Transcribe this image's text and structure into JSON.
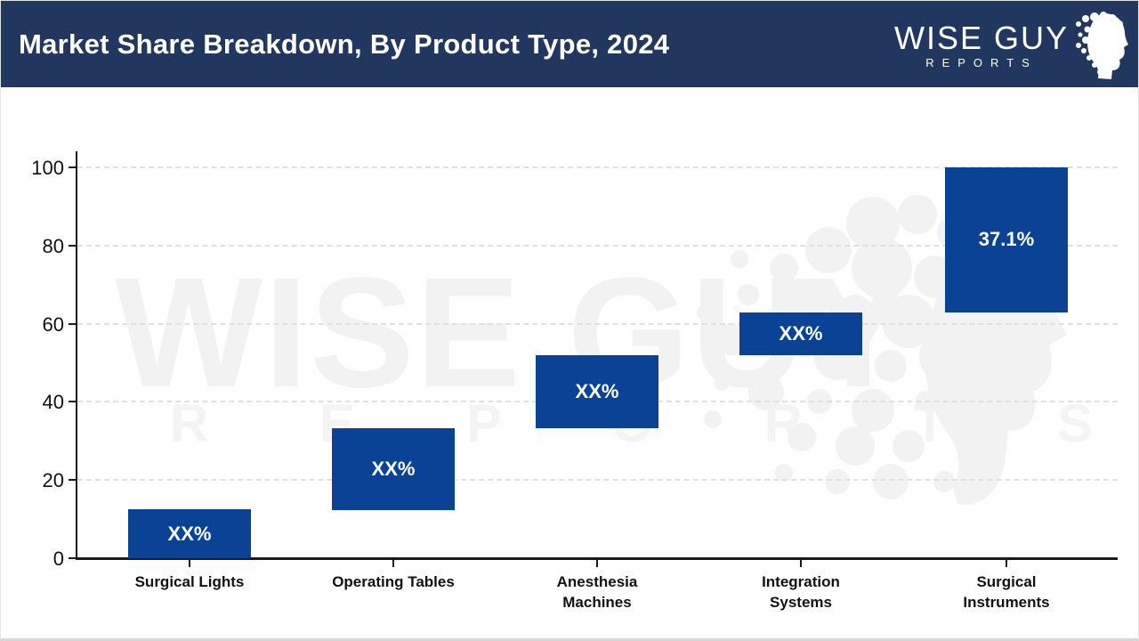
{
  "header": {
    "title": "Market Share Breakdown, By Product Type, 2024",
    "bg_color": "#21375F",
    "logo": {
      "line1": "WISE GUY",
      "line2": "REPORTS"
    }
  },
  "watermark": {
    "line1": "WISE GUY",
    "line2": "R E P O R T S"
  },
  "chart_data": {
    "type": "bar",
    "subtype": "waterfall",
    "title": "Market Share Breakdown, By Product Type, 2024",
    "categories": [
      "Surgical Lights",
      "Operating Tables",
      "Anesthesia Machines",
      "Integration Systems",
      "Surgical Instruments"
    ],
    "label_lines": [
      [
        "Surgical Lights"
      ],
      [
        "Operating Tables"
      ],
      [
        "Anesthesia",
        "Machines"
      ],
      [
        "Integration",
        "Systems"
      ],
      [
        "Surgical",
        "Instruments"
      ]
    ],
    "series": [
      {
        "name": "Market Share (%)",
        "ranges": [
          [
            0,
            12.5
          ],
          [
            12.4,
            33.3
          ],
          [
            33.3,
            51.9
          ],
          [
            51.9,
            62.9
          ],
          [
            62.9,
            100
          ]
        ],
        "bar_labels": [
          "XX%",
          "XX%",
          "XX%",
          "XX%",
          "37.1%"
        ]
      }
    ],
    "ylim": [
      0,
      104
    ],
    "yticks": [
      0,
      20,
      40,
      60,
      80,
      100
    ],
    "xlabel": "",
    "ylabel": "",
    "grid": true,
    "legend": false,
    "bar_color": "#0A4296",
    "bar_label_color": "#FFFFFF"
  },
  "colors": {
    "header_bg": "#21375F",
    "bar": "#0A4296",
    "axis": "#1A1A1A",
    "grid": "#E0E0E0",
    "watermark": "#F2F2F2"
  }
}
